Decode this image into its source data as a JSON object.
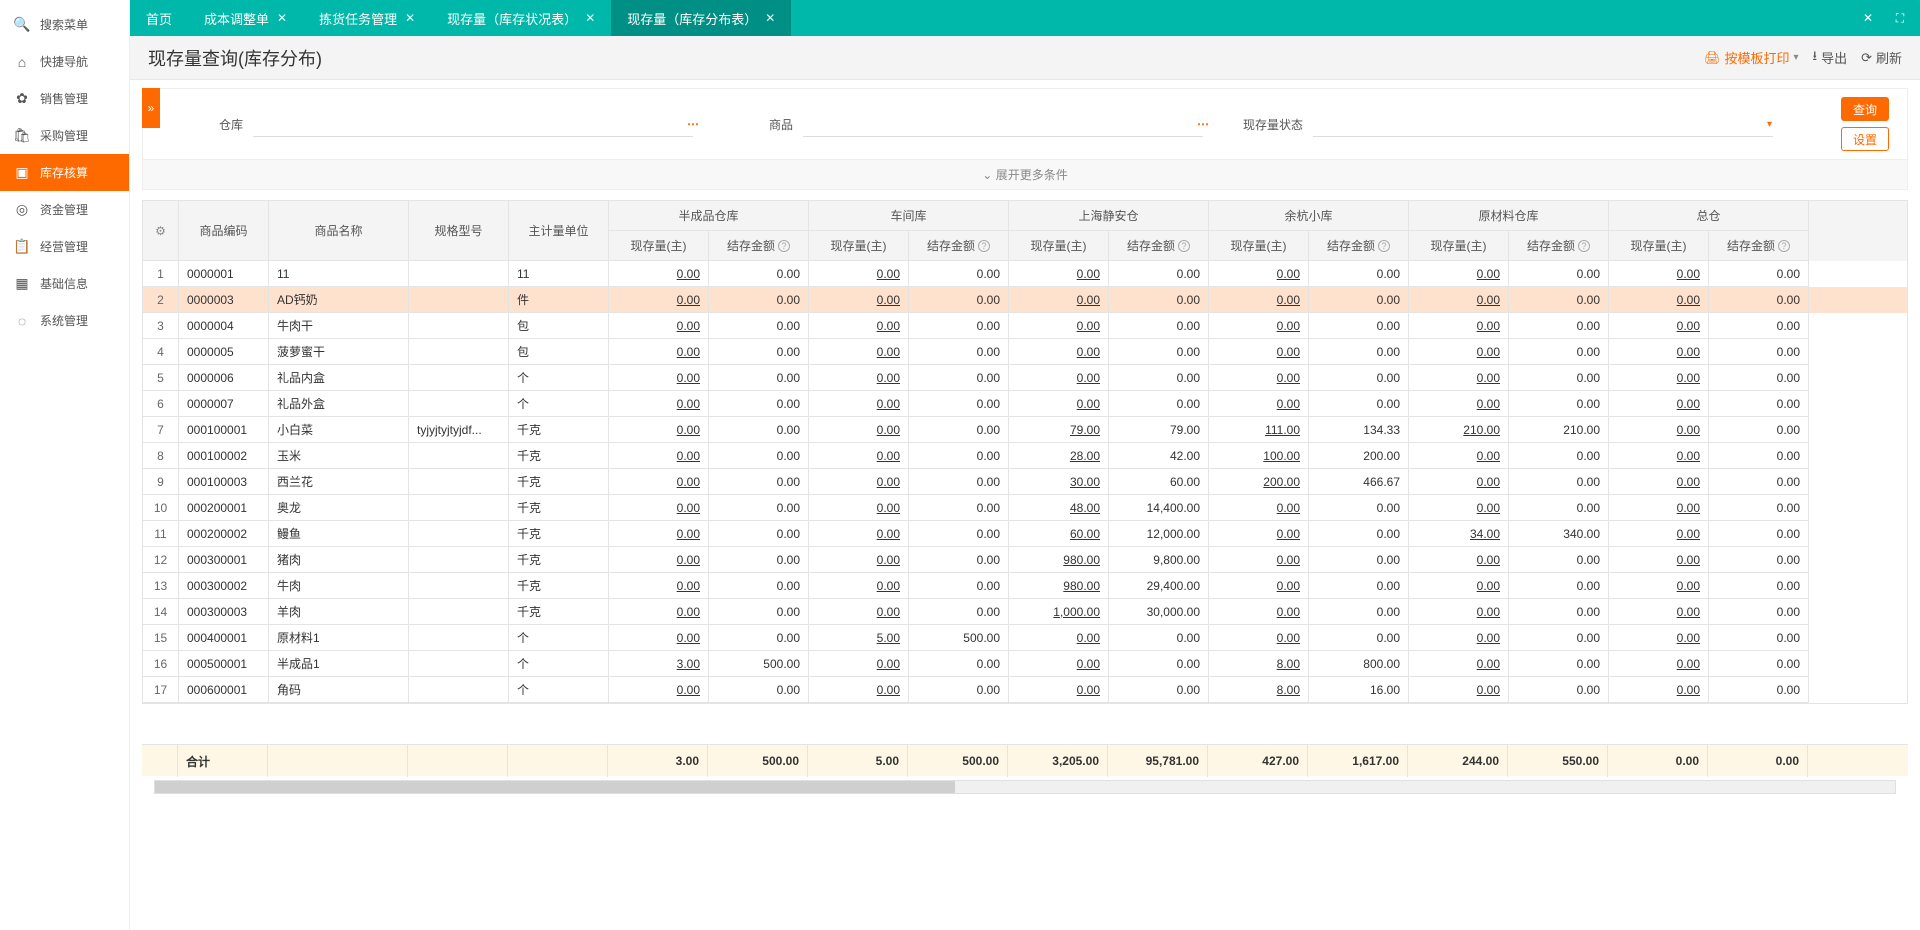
{
  "sidebar": {
    "items": [
      {
        "icon": "search",
        "label": "搜索菜单"
      },
      {
        "icon": "nav",
        "label": "快捷导航"
      },
      {
        "icon": "sale",
        "label": "销售管理"
      },
      {
        "icon": "buy",
        "label": "采购管理"
      },
      {
        "icon": "stock",
        "label": "库存核算",
        "active": true
      },
      {
        "icon": "fund",
        "label": "资金管理"
      },
      {
        "icon": "biz",
        "label": "经营管理"
      },
      {
        "icon": "base",
        "label": "基础信息"
      },
      {
        "icon": "sys",
        "label": "系统管理"
      }
    ]
  },
  "tabs": [
    {
      "label": "首页",
      "closable": false
    },
    {
      "label": "成本调整单",
      "closable": true
    },
    {
      "label": "拣货任务管理",
      "closable": true
    },
    {
      "label": "现存量（库存状况表）",
      "closable": true
    },
    {
      "label": "现存量（库存分布表）",
      "closable": true,
      "active": true
    }
  ],
  "page": {
    "title": "现存量查询(库存分布)",
    "print": "按模板打印",
    "export": "导出",
    "refresh": "刷新"
  },
  "filters": {
    "warehouse": {
      "label": "仓库",
      "value": ""
    },
    "product": {
      "label": "商品",
      "value": ""
    },
    "status": {
      "label": "现存量状态",
      "value": ""
    },
    "queryBtn": "查询",
    "settingBtn": "设置",
    "expand": "展开更多条件"
  },
  "columns": {
    "fixed": [
      "",
      "商品编码",
      "商品名称",
      "规格型号",
      "主计量单位"
    ],
    "groups": [
      "半成品仓库",
      "车间库",
      "上海静安仓",
      "余杭小库",
      "原材料仓库",
      "总仓"
    ],
    "sub": {
      "qty": "现存量(主)",
      "amt": "结存金额"
    },
    "qmark": "?"
  },
  "rows": [
    {
      "i": 1,
      "code": "0000001",
      "name": "11",
      "spec": "",
      "unit": "11",
      "v": [
        [
          "0.00",
          "0.00"
        ],
        [
          "0.00",
          "0.00"
        ],
        [
          "0.00",
          "0.00"
        ],
        [
          "0.00",
          "0.00"
        ],
        [
          "0.00",
          "0.00"
        ],
        [
          "0.00",
          "0.00"
        ]
      ]
    },
    {
      "i": 2,
      "code": "0000003",
      "name": "AD钙奶",
      "spec": "",
      "unit": "件",
      "hl": true,
      "v": [
        [
          "0.00",
          "0.00"
        ],
        [
          "0.00",
          "0.00"
        ],
        [
          "0.00",
          "0.00"
        ],
        [
          "0.00",
          "0.00"
        ],
        [
          "0.00",
          "0.00"
        ],
        [
          "0.00",
          "0.00"
        ]
      ]
    },
    {
      "i": 3,
      "code": "0000004",
      "name": "牛肉干",
      "spec": "",
      "unit": "包",
      "v": [
        [
          "0.00",
          "0.00"
        ],
        [
          "0.00",
          "0.00"
        ],
        [
          "0.00",
          "0.00"
        ],
        [
          "0.00",
          "0.00"
        ],
        [
          "0.00",
          "0.00"
        ],
        [
          "0.00",
          "0.00"
        ]
      ]
    },
    {
      "i": 4,
      "code": "0000005",
      "name": "菠萝蜜干",
      "spec": "",
      "unit": "包",
      "v": [
        [
          "0.00",
          "0.00"
        ],
        [
          "0.00",
          "0.00"
        ],
        [
          "0.00",
          "0.00"
        ],
        [
          "0.00",
          "0.00"
        ],
        [
          "0.00",
          "0.00"
        ],
        [
          "0.00",
          "0.00"
        ]
      ]
    },
    {
      "i": 5,
      "code": "0000006",
      "name": "礼品内盒",
      "spec": "",
      "unit": "个",
      "v": [
        [
          "0.00",
          "0.00"
        ],
        [
          "0.00",
          "0.00"
        ],
        [
          "0.00",
          "0.00"
        ],
        [
          "0.00",
          "0.00"
        ],
        [
          "0.00",
          "0.00"
        ],
        [
          "0.00",
          "0.00"
        ]
      ]
    },
    {
      "i": 6,
      "code": "0000007",
      "name": "礼品外盒",
      "spec": "",
      "unit": "个",
      "v": [
        [
          "0.00",
          "0.00"
        ],
        [
          "0.00",
          "0.00"
        ],
        [
          "0.00",
          "0.00"
        ],
        [
          "0.00",
          "0.00"
        ],
        [
          "0.00",
          "0.00"
        ],
        [
          "0.00",
          "0.00"
        ]
      ]
    },
    {
      "i": 7,
      "code": "000100001",
      "name": "小白菜",
      "spec": "tyjyjtyjtyjdf...",
      "unit": "千克",
      "v": [
        [
          "0.00",
          "0.00"
        ],
        [
          "0.00",
          "0.00"
        ],
        [
          "79.00",
          "79.00"
        ],
        [
          "111.00",
          "134.33"
        ],
        [
          "210.00",
          "210.00"
        ],
        [
          "0.00",
          "0.00"
        ]
      ]
    },
    {
      "i": 8,
      "code": "000100002",
      "name": "玉米",
      "spec": "",
      "unit": "千克",
      "v": [
        [
          "0.00",
          "0.00"
        ],
        [
          "0.00",
          "0.00"
        ],
        [
          "28.00",
          "42.00"
        ],
        [
          "100.00",
          "200.00"
        ],
        [
          "0.00",
          "0.00"
        ],
        [
          "0.00",
          "0.00"
        ]
      ]
    },
    {
      "i": 9,
      "code": "000100003",
      "name": "西兰花",
      "spec": "",
      "unit": "千克",
      "v": [
        [
          "0.00",
          "0.00"
        ],
        [
          "0.00",
          "0.00"
        ],
        [
          "30.00",
          "60.00"
        ],
        [
          "200.00",
          "466.67"
        ],
        [
          "0.00",
          "0.00"
        ],
        [
          "0.00",
          "0.00"
        ]
      ]
    },
    {
      "i": 10,
      "code": "000200001",
      "name": "奥龙",
      "spec": "",
      "unit": "千克",
      "v": [
        [
          "0.00",
          "0.00"
        ],
        [
          "0.00",
          "0.00"
        ],
        [
          "48.00",
          "14,400.00"
        ],
        [
          "0.00",
          "0.00"
        ],
        [
          "0.00",
          "0.00"
        ],
        [
          "0.00",
          "0.00"
        ]
      ]
    },
    {
      "i": 11,
      "code": "000200002",
      "name": "鳗鱼",
      "spec": "",
      "unit": "千克",
      "v": [
        [
          "0.00",
          "0.00"
        ],
        [
          "0.00",
          "0.00"
        ],
        [
          "60.00",
          "12,000.00"
        ],
        [
          "0.00",
          "0.00"
        ],
        [
          "34.00",
          "340.00"
        ],
        [
          "0.00",
          "0.00"
        ]
      ]
    },
    {
      "i": 12,
      "code": "000300001",
      "name": "猪肉",
      "spec": "",
      "unit": "千克",
      "v": [
        [
          "0.00",
          "0.00"
        ],
        [
          "0.00",
          "0.00"
        ],
        [
          "980.00",
          "9,800.00"
        ],
        [
          "0.00",
          "0.00"
        ],
        [
          "0.00",
          "0.00"
        ],
        [
          "0.00",
          "0.00"
        ]
      ]
    },
    {
      "i": 13,
      "code": "000300002",
      "name": "牛肉",
      "spec": "",
      "unit": "千克",
      "v": [
        [
          "0.00",
          "0.00"
        ],
        [
          "0.00",
          "0.00"
        ],
        [
          "980.00",
          "29,400.00"
        ],
        [
          "0.00",
          "0.00"
        ],
        [
          "0.00",
          "0.00"
        ],
        [
          "0.00",
          "0.00"
        ]
      ]
    },
    {
      "i": 14,
      "code": "000300003",
      "name": "羊肉",
      "spec": "",
      "unit": "千克",
      "v": [
        [
          "0.00",
          "0.00"
        ],
        [
          "0.00",
          "0.00"
        ],
        [
          "1,000.00",
          "30,000.00"
        ],
        [
          "0.00",
          "0.00"
        ],
        [
          "0.00",
          "0.00"
        ],
        [
          "0.00",
          "0.00"
        ]
      ]
    },
    {
      "i": 15,
      "code": "000400001",
      "name": "原材料1",
      "spec": "",
      "unit": "个",
      "v": [
        [
          "0.00",
          "0.00"
        ],
        [
          "5.00",
          "500.00"
        ],
        [
          "0.00",
          "0.00"
        ],
        [
          "0.00",
          "0.00"
        ],
        [
          "0.00",
          "0.00"
        ],
        [
          "0.00",
          "0.00"
        ]
      ]
    },
    {
      "i": 16,
      "code": "000500001",
      "name": "半成品1",
      "spec": "",
      "unit": "个",
      "v": [
        [
          "3.00",
          "500.00"
        ],
        [
          "0.00",
          "0.00"
        ],
        [
          "0.00",
          "0.00"
        ],
        [
          "8.00",
          "800.00"
        ],
        [
          "0.00",
          "0.00"
        ],
        [
          "0.00",
          "0.00"
        ]
      ]
    },
    {
      "i": 17,
      "code": "000600001",
      "name": "角码",
      "spec": "",
      "unit": "个",
      "v": [
        [
          "0.00",
          "0.00"
        ],
        [
          "0.00",
          "0.00"
        ],
        [
          "0.00",
          "0.00"
        ],
        [
          "8.00",
          "16.00"
        ],
        [
          "0.00",
          "0.00"
        ],
        [
          "0.00",
          "0.00"
        ]
      ]
    }
  ],
  "totals": {
    "label": "合计",
    "v": [
      [
        "3.00",
        "500.00"
      ],
      [
        "5.00",
        "500.00"
      ],
      [
        "3,205.00",
        "95,781.00"
      ],
      [
        "427.00",
        "1,617.00"
      ],
      [
        "244.00",
        "550.00"
      ],
      [
        "0.00",
        "0.00"
      ]
    ]
  },
  "colors": {
    "primary": "#00b8a9",
    "accent": "#ff6a00",
    "highlight": "#ffe2ce",
    "footer": "#fff7e6"
  }
}
